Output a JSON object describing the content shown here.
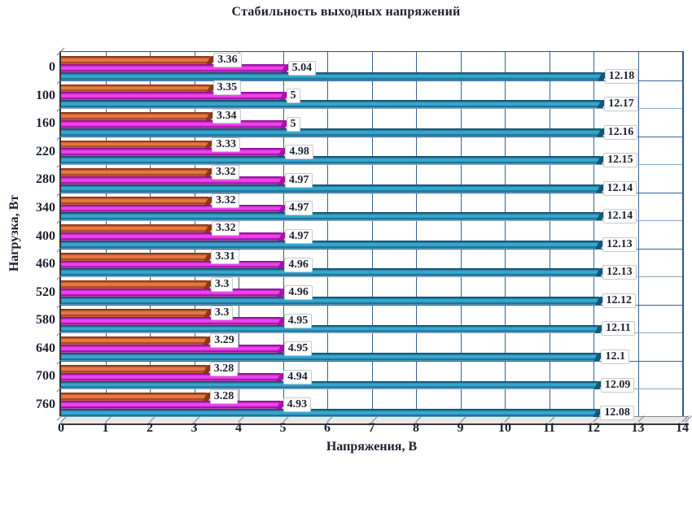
{
  "title": "Стабильность выходных напряжений",
  "colors": {
    "text": "#1c2230",
    "gridline": "#3a6391",
    "gridline_light": "#8aa7c8",
    "axis_dark": "#333333",
    "plot_right_border": "#2e5a86",
    "floor_fill": "#e9e9e9",
    "slash": "#6e7d92",
    "label_box_bg": "#ffffff",
    "label_box_border": "#c9c9c9"
  },
  "chart_data": {
    "type": "bar",
    "orientation": "horizontal",
    "title": "Стабильность выходных напряжений",
    "xlabel": "Напряжения, В",
    "ylabel": "Нагрузка, Вт",
    "xlim": [
      0,
      14
    ],
    "xticks": [
      "0",
      "1",
      "2",
      "3",
      "4",
      "5",
      "6",
      "7",
      "8",
      "9",
      "10",
      "11",
      "12",
      "13",
      "14"
    ],
    "grid": true,
    "legend": false,
    "categories": [
      "0",
      "100",
      "160",
      "220",
      "280",
      "340",
      "400",
      "460",
      "520",
      "580",
      "640",
      "700",
      "760"
    ],
    "series": [
      {
        "name": "orange-series",
        "gradient": [
          "#6f2408",
          "#ea7a45",
          "#8e3514"
        ],
        "cap_color": "#8a3a1a",
        "bottom_edge": "#f0b07e",
        "values": [
          3.36,
          3.35,
          3.34,
          3.33,
          3.32,
          3.32,
          3.32,
          3.31,
          3.3,
          3.3,
          3.29,
          3.28,
          3.28
        ],
        "labels": [
          "3.36",
          "3.35",
          "3.34",
          "3.33",
          "3.32",
          "3.32",
          "3.32",
          "3.31",
          "3.3",
          "3.3",
          "3.29",
          "3.28",
          "3.28"
        ]
      },
      {
        "name": "magenta-series",
        "gradient": [
          "#7c0080",
          "#ee46ee",
          "#8c0090"
        ],
        "cap_color": "#a812a8",
        "bottom_edge": "#f2a0f2",
        "values": [
          5.04,
          5,
          5,
          4.98,
          4.97,
          4.97,
          4.97,
          4.96,
          4.96,
          4.95,
          4.95,
          4.94,
          4.93
        ],
        "labels": [
          "5.04",
          "5",
          "5",
          "4.98",
          "4.97",
          "4.97",
          "4.97",
          "4.96",
          "4.96",
          "4.95",
          "4.95",
          "4.94",
          "4.93"
        ]
      },
      {
        "name": "blue-series",
        "gradient": [
          "#083c52",
          "#38a8d2",
          "#116181"
        ],
        "cap_color": "#0d597a",
        "bottom_edge": "#a8d8ea",
        "values": [
          12.18,
          12.17,
          12.16,
          12.15,
          12.14,
          12.14,
          12.13,
          12.13,
          12.12,
          12.11,
          12.1,
          12.09,
          12.08
        ],
        "labels": [
          "12.18",
          "12.17",
          "12.16",
          "12.15",
          "12.14",
          "12.14",
          "12.13",
          "12.13",
          "12.12",
          "12.11",
          "12.1",
          "12.09",
          "12.08"
        ]
      }
    ]
  }
}
